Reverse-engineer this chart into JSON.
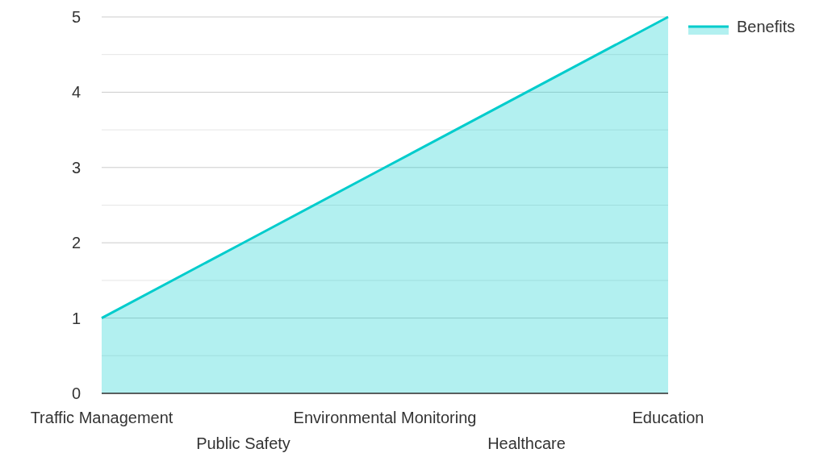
{
  "chart_data": {
    "type": "area",
    "categories": [
      "Traffic Management",
      "Public Safety",
      "Environmental Monitoring",
      "Healthcare",
      "Education"
    ],
    "series": [
      {
        "name": "Benefits",
        "color": "#00cccc",
        "values": [
          1,
          2,
          3,
          4,
          5
        ]
      }
    ],
    "ylim": [
      0,
      5
    ],
    "yticks": [
      0,
      {
        "value": 0.5,
        "label": null
      },
      1,
      {
        "value": 1.5,
        "label": null
      },
      2,
      {
        "value": 2.5,
        "label": null
      },
      3,
      {
        "value": 3.5,
        "label": null
      },
      4,
      {
        "value": 4.5,
        "label": null
      },
      5
    ],
    "grid": true,
    "legend": "top right"
  }
}
